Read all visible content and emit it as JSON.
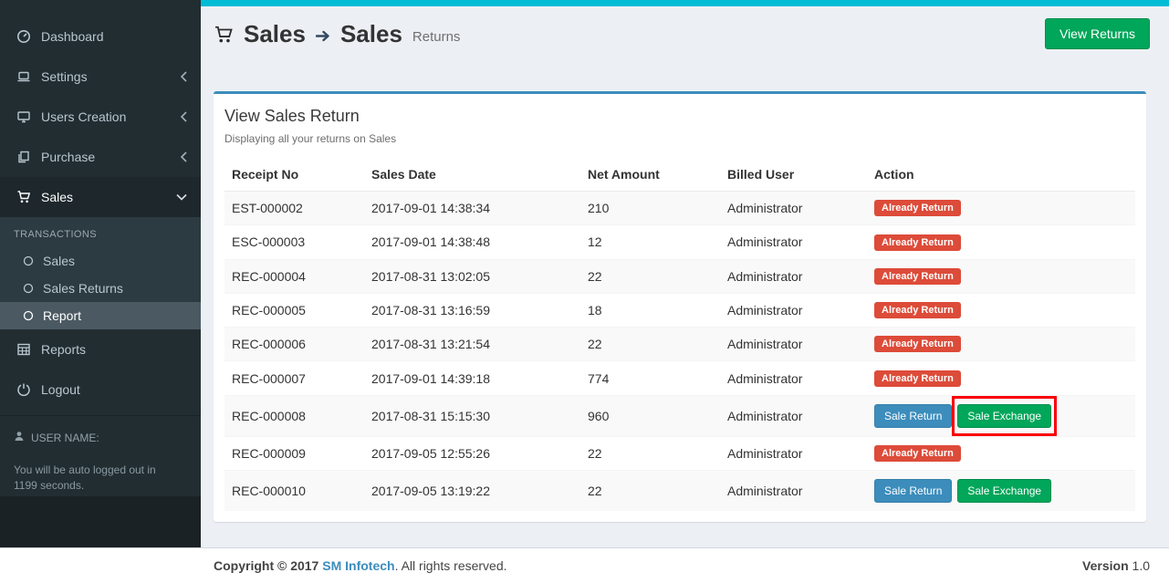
{
  "colors": {
    "sidebar_bg": "#222d32",
    "sidebar_active_bg": "#1e282c",
    "top_strip": "#00bcd4",
    "card_accent": "#3c8dbc",
    "danger": "#dd4b39",
    "primary": "#3c8dbc",
    "success": "#00a65a",
    "annotation": "#fb0007"
  },
  "sidebar": {
    "items": [
      {
        "label": "Dashboard"
      },
      {
        "label": "Settings"
      },
      {
        "label": "Users Creation"
      },
      {
        "label": "Purchase"
      },
      {
        "label": "Sales"
      }
    ],
    "section_label": "TRANSACTIONS",
    "submenu": [
      {
        "label": "Sales"
      },
      {
        "label": "Sales Returns"
      },
      {
        "label": "Report"
      }
    ],
    "items_bottom": [
      {
        "label": "Reports"
      },
      {
        "label": "Logout"
      }
    ],
    "user_label": "USER NAME:",
    "logout_notice": "You will be auto logged out in 1199 seconds."
  },
  "header": {
    "title_primary": "Sales",
    "title_secondary": "Sales",
    "title_sub": "Returns",
    "view_returns_button": "View Returns"
  },
  "panel": {
    "title": "View Sales Return",
    "subtitle": "Displaying all your returns on Sales",
    "table": {
      "columns": [
        "Receipt No",
        "Sales Date",
        "Net Amount",
        "Billed User",
        "Action"
      ],
      "rows": [
        {
          "receipt": "EST-000002",
          "date": "2017-09-01 14:38:34",
          "amount": "210",
          "user": "Administrator",
          "actions": [
            {
              "label": "Already Return",
              "type": "label-danger",
              "name": "already-return-badge"
            }
          ]
        },
        {
          "receipt": "ESC-000003",
          "date": "2017-09-01 14:38:48",
          "amount": "12",
          "user": "Administrator",
          "actions": [
            {
              "label": "Already Return",
              "type": "label-danger",
              "name": "already-return-badge"
            }
          ]
        },
        {
          "receipt": "REC-000004",
          "date": "2017-08-31 13:02:05",
          "amount": "22",
          "user": "Administrator",
          "actions": [
            {
              "label": "Already Return",
              "type": "label-danger",
              "name": "already-return-badge"
            }
          ]
        },
        {
          "receipt": "REC-000005",
          "date": "2017-08-31 13:16:59",
          "amount": "18",
          "user": "Administrator",
          "actions": [
            {
              "label": "Already Return",
              "type": "label-danger",
              "name": "already-return-badge"
            }
          ]
        },
        {
          "receipt": "REC-000006",
          "date": "2017-08-31 13:21:54",
          "amount": "22",
          "user": "Administrator",
          "actions": [
            {
              "label": "Already Return",
              "type": "label-danger",
              "name": "already-return-badge"
            }
          ]
        },
        {
          "receipt": "REC-000007",
          "date": "2017-09-01 14:39:18",
          "amount": "774",
          "user": "Administrator",
          "actions": [
            {
              "label": "Already Return",
              "type": "label-danger",
              "name": "already-return-badge"
            }
          ]
        },
        {
          "receipt": "REC-000008",
          "date": "2017-08-31 15:15:30",
          "amount": "960",
          "user": "Administrator",
          "actions": [
            {
              "label": "Sale Return",
              "type": "btn-primary",
              "name": "sale-return-button"
            },
            {
              "label": "Sale Exchange",
              "type": "btn-success",
              "name": "sale-exchange-button",
              "annotated": true
            }
          ]
        },
        {
          "receipt": "REC-000009",
          "date": "2017-09-05 12:55:26",
          "amount": "22",
          "user": "Administrator",
          "actions": [
            {
              "label": "Already Return",
              "type": "label-danger",
              "name": "already-return-badge"
            }
          ]
        },
        {
          "receipt": "REC-000010",
          "date": "2017-09-05 13:19:22",
          "amount": "22",
          "user": "Administrator",
          "actions": [
            {
              "label": "Sale Return",
              "type": "btn-primary",
              "name": "sale-return-button"
            },
            {
              "label": "Sale Exchange",
              "type": "btn-success",
              "name": "sale-exchange-button"
            }
          ]
        }
      ]
    }
  },
  "footer": {
    "copyright_prefix": "Copyright © 2017 ",
    "company": "SM Infotech",
    "copyright_suffix": ". All rights reserved.",
    "version_label": "Version",
    "version_value": "1.0"
  }
}
